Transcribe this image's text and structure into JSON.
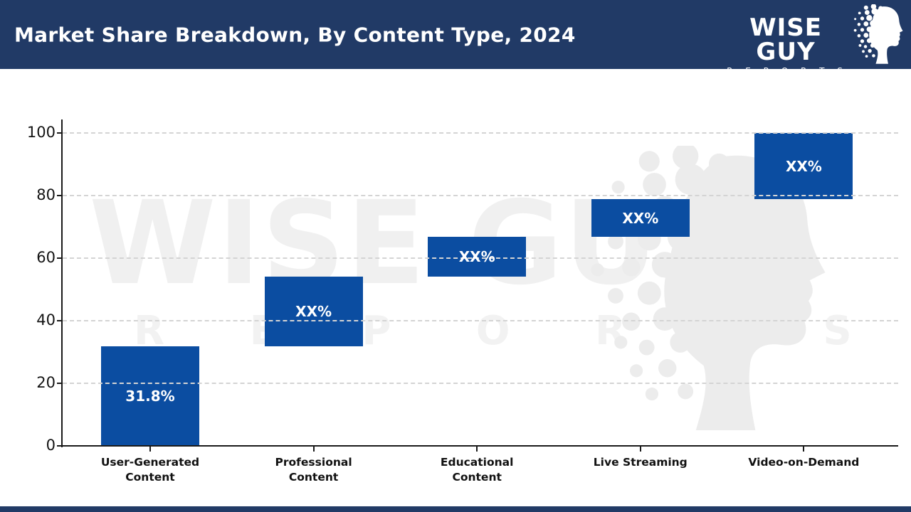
{
  "header": {
    "title": "Market Share Breakdown, By Content Type, 2024",
    "background": "#213a66",
    "logo": {
      "brand_top": "WISE GUY",
      "brand_bottom": "R E P O R T S"
    }
  },
  "watermark": {
    "line1": "WISE GUY",
    "line2": "R E P O R T S"
  },
  "footer": {
    "background": "#213a66"
  },
  "chart_data": {
    "type": "bar",
    "subtype": "waterfall",
    "title": "Market Share Breakdown, By Content Type, 2024",
    "categories": [
      "User-Generated Content",
      "Professional Content",
      "Educational Content",
      "Live Streaming",
      "Video-on-Demand"
    ],
    "category_lines": [
      [
        "User-Generated",
        "Content"
      ],
      [
        "Professional",
        "Content"
      ],
      [
        "Educational",
        "Content"
      ],
      [
        "Live Streaming"
      ],
      [
        "Video-on-Demand"
      ]
    ],
    "series": [
      {
        "category": "User-Generated Content",
        "start": 0,
        "end": 31.8,
        "label": "31.8%"
      },
      {
        "category": "Professional Content",
        "start": 31.8,
        "end": 54.2,
        "label": "XX%"
      },
      {
        "category": "Educational Content",
        "start": 54.2,
        "end": 66.8,
        "label": "XX%"
      },
      {
        "category": "Live Streaming",
        "start": 66.8,
        "end": 78.8,
        "label": "XX%"
      },
      {
        "category": "Video-on-Demand",
        "start": 78.8,
        "end": 100,
        "label": "XX%"
      }
    ],
    "xlabel": "",
    "ylabel": "",
    "ylim": [
      0,
      100
    ],
    "yticks": [
      0,
      20,
      40,
      60,
      80,
      100
    ],
    "grid": "dashed-horizontal",
    "legend": null,
    "bar_color": "#0b4da1",
    "bar_label_color": "#ffffff",
    "axis_color": "#1a1a1a",
    "gridline_color": "#d4d4d4",
    "tick_label_color": "#141414"
  }
}
